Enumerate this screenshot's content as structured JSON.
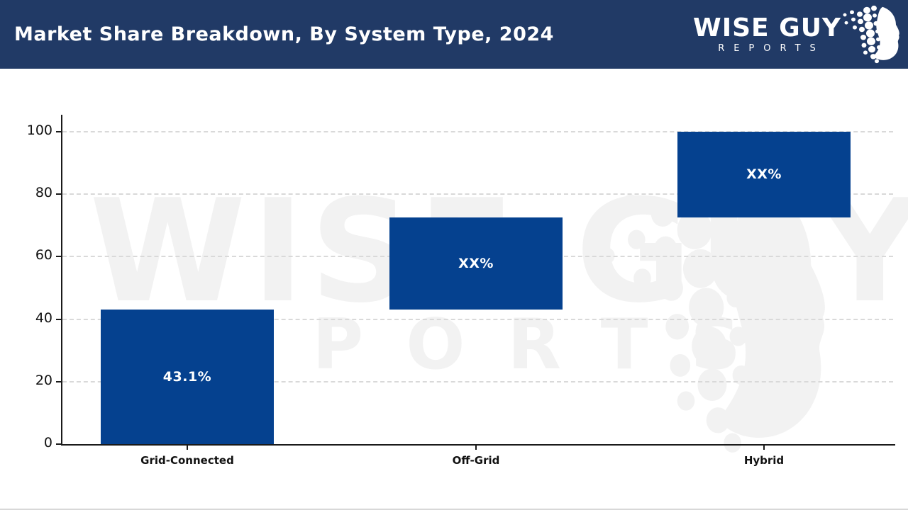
{
  "header": {
    "title": "Market Share Breakdown, By System Type, 2024",
    "logo_line1": "WISE GUY",
    "logo_line2": "REPORTS"
  },
  "watermark": {
    "line1": "WISE GUY",
    "line2": "REPORTS"
  },
  "chart_data": {
    "type": "bar",
    "subtype": "waterfall",
    "title": "Market Share Breakdown, By System Type, 2024",
    "categories": [
      "Grid-Connected",
      "Off-Grid",
      "Hybrid"
    ],
    "segments": [
      {
        "category": "Grid-Connected",
        "start": 0,
        "end": 43.1,
        "value": 43.1,
        "label": "43.1%"
      },
      {
        "category": "Off-Grid",
        "start": 43.1,
        "end": 72.6,
        "value": 29.5,
        "label": "XX%"
      },
      {
        "category": "Hybrid",
        "start": 72.6,
        "end": 100,
        "value": 27.4,
        "label": "XX%"
      }
    ],
    "yticks": [
      0,
      20,
      40,
      60,
      80,
      100
    ],
    "ylim": [
      0,
      100
    ],
    "xlabel": "",
    "ylabel": "",
    "grid": "dashed-horizontal",
    "legend": "none",
    "bar_color": "#05418f"
  },
  "colors": {
    "header_bg": "#213a66",
    "bar": "#05418f",
    "grid_line": "#d9d9d9",
    "axis": "#1a1a1a",
    "watermark": "#f2f2f2",
    "label_on_bar": "#ffffff",
    "bottom_rule": "#d8d8d8"
  }
}
